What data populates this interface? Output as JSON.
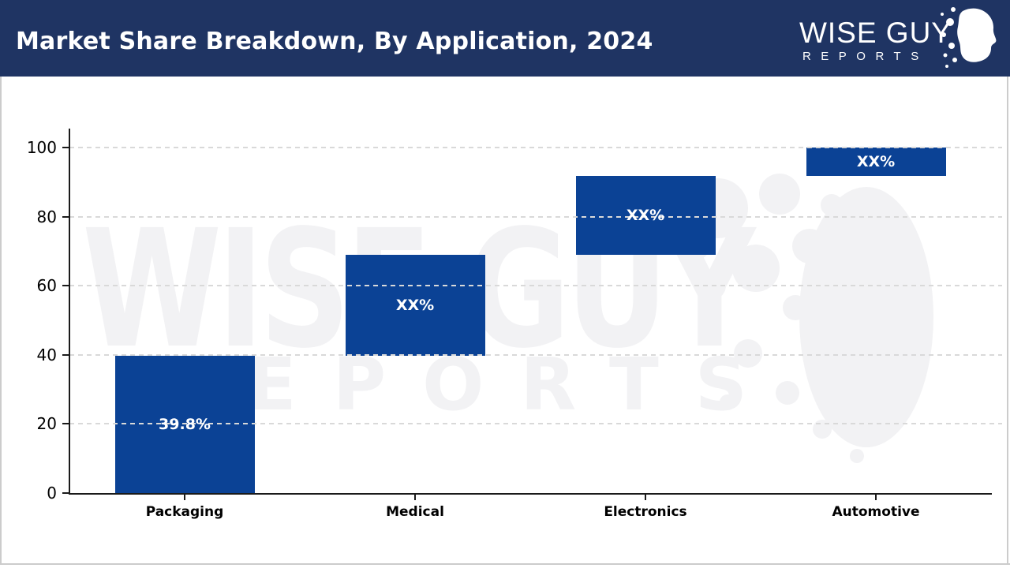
{
  "header": {
    "title": "Market Share Breakdown, By Application, 2024",
    "bg_color": "#1f3463",
    "logo": {
      "line1": "WISE GUY",
      "line2": "REPORTS",
      "head_icon": "dotted-head-profile"
    }
  },
  "watermark": {
    "line1": "WISE GUY",
    "line2": "REPORTS"
  },
  "chart_data": {
    "type": "bar",
    "subtype": "waterfall",
    "title": "Market Share Breakdown, By Application, 2024",
    "categories": [
      "Packaging",
      "Medical",
      "Electronics",
      "Automotive"
    ],
    "segments": [
      {
        "category": "Packaging",
        "start": 0,
        "end": 39.8,
        "label": "39.8%"
      },
      {
        "category": "Medical",
        "start": 39.8,
        "end": 69,
        "label": "XX%"
      },
      {
        "category": "Electronics",
        "start": 69,
        "end": 91.8,
        "label": "XX%"
      },
      {
        "category": "Automotive",
        "start": 91.8,
        "end": 100,
        "label": "XX%"
      }
    ],
    "values_by_segment": [
      39.8,
      29.2,
      22.8,
      8.2
    ],
    "xlabel": "",
    "ylabel": "",
    "yticks": [
      0,
      20,
      40,
      60,
      80,
      100
    ],
    "ylim": [
      0,
      105
    ],
    "grid": "horizontal-dashed",
    "grid_color": "#d9d9d9",
    "legend": "none",
    "bar_color": "#0b4295",
    "bar_label_color": "#ffffff",
    "axis_color": "#1a1a1a"
  }
}
